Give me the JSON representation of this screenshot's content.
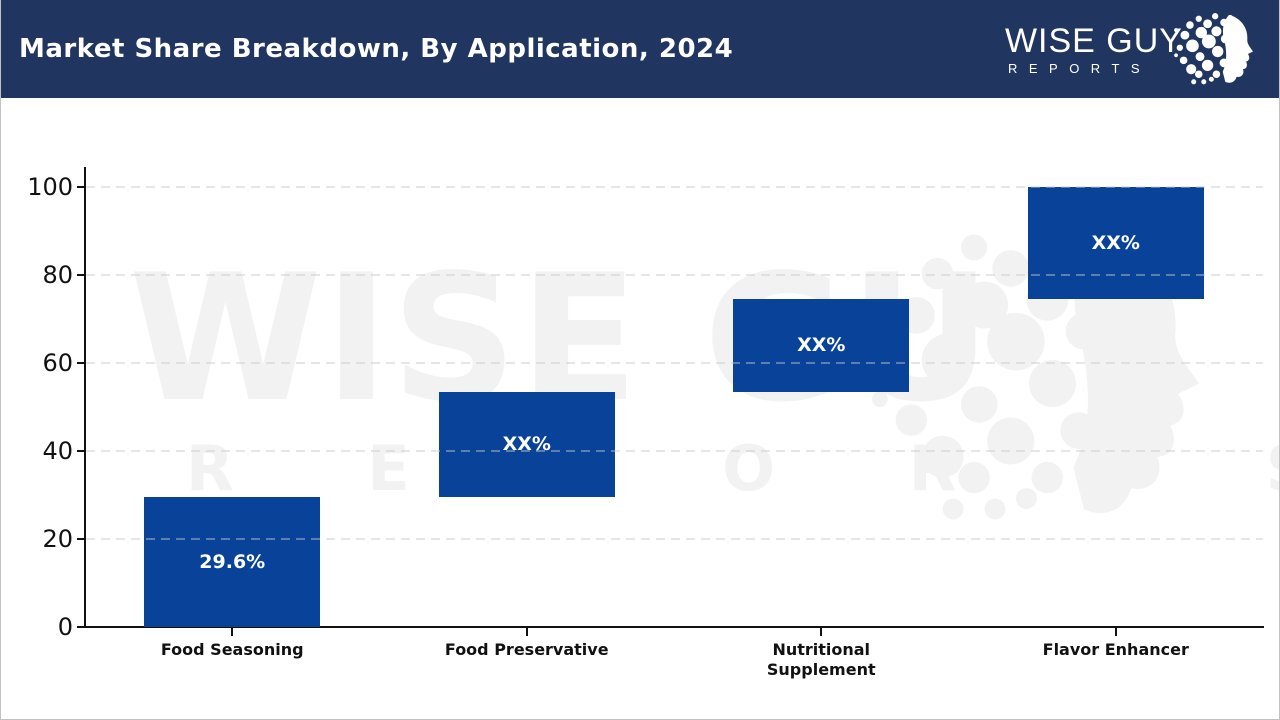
{
  "header": {
    "title": "Market Share Breakdown, By Application, 2024",
    "bg_color": "#213561",
    "logo": {
      "line1": "WISE GUY",
      "line2": "REPORTS"
    }
  },
  "watermark": {
    "line1": "WISE GU",
    "line2": "R E P O R T S",
    "color": "#f2f2f2"
  },
  "chart_data": {
    "type": "bar",
    "subtype": "waterfall",
    "title": "Market Share Breakdown, By Application, 2024",
    "xlabel": "",
    "ylabel": "",
    "ylim": [
      0,
      100
    ],
    "yticks": [
      0,
      20,
      40,
      60,
      80,
      100
    ],
    "grid": "horizontal-dashed",
    "legend": "none",
    "bar_color": "#084399",
    "value_label_color": "#ffffff",
    "axis_color": "#111111",
    "bars": [
      {
        "category": "Food Seasoning",
        "start": 0,
        "end": 29.6,
        "label": "29.6%"
      },
      {
        "category": "Food Preservative",
        "start": 29.6,
        "end": 53.4,
        "label": "XX%"
      },
      {
        "category": "Nutritional\nSupplement",
        "start": 53.4,
        "end": 74.6,
        "label": "XX%"
      },
      {
        "category": "Flavor Enhancer",
        "start": 74.6,
        "end": 100,
        "label": "XX%"
      }
    ]
  }
}
